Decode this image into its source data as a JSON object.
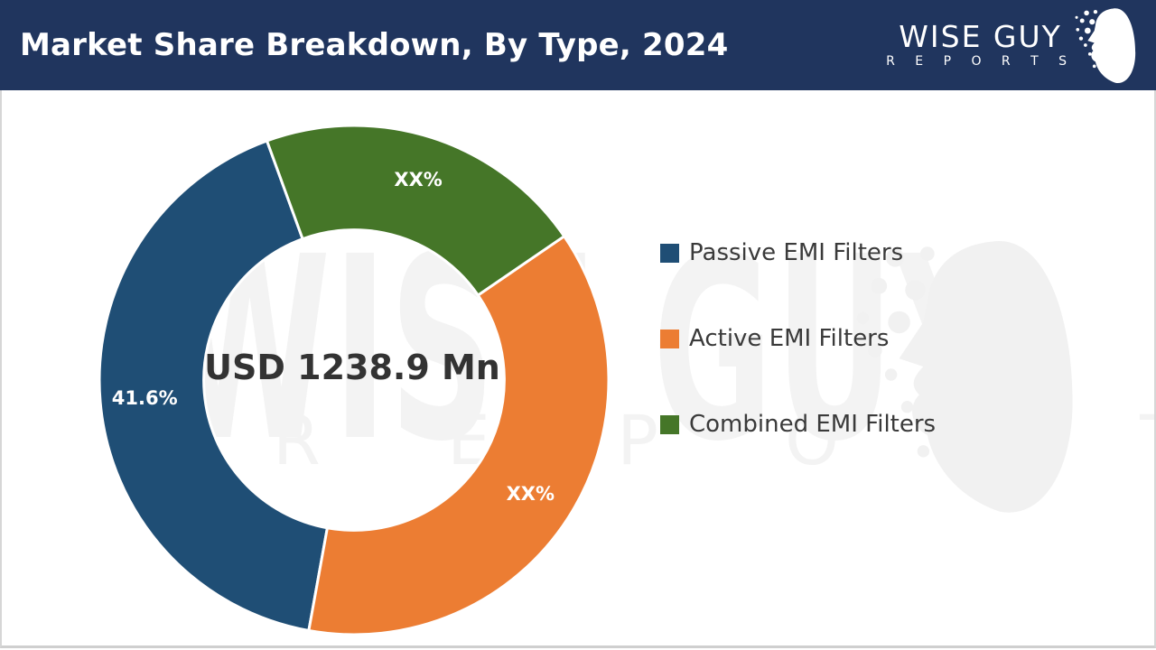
{
  "header": {
    "title": "Market Share Breakdown, By Type, 2024",
    "bg_color": "#20355E",
    "logo": {
      "line1": "WISE GUY",
      "line2": "R E P O R T S"
    }
  },
  "chart_data": {
    "type": "pie",
    "subtype": "donut",
    "title": "Market Share Breakdown, By Type, 2024",
    "center_label": "USD 1238.9 Mn",
    "donut_hole_ratio": 0.59,
    "start_angle_deg": 110,
    "direction": "counterclockwise",
    "legend_position": "right",
    "slices": [
      {
        "label": "Passive EMI Filters",
        "value_pct": 41.6,
        "display_pct": "41.6%",
        "color": "#1F4E75"
      },
      {
        "label": "Active EMI Filters",
        "value_pct": 37.4,
        "display_pct": "XX%",
        "color": "#EC7D33"
      },
      {
        "label": "Combined EMI Filters",
        "value_pct": 21.0,
        "display_pct": "XX%",
        "color": "#457628"
      }
    ]
  },
  "watermark": {
    "line1": "WISE GUY",
    "line2": "R E P O R T S"
  },
  "colors": {
    "border": "#d6d6d6",
    "legend_text": "#3a3a3a",
    "center_text": "#333333",
    "watermark": "#f3f3f3"
  }
}
